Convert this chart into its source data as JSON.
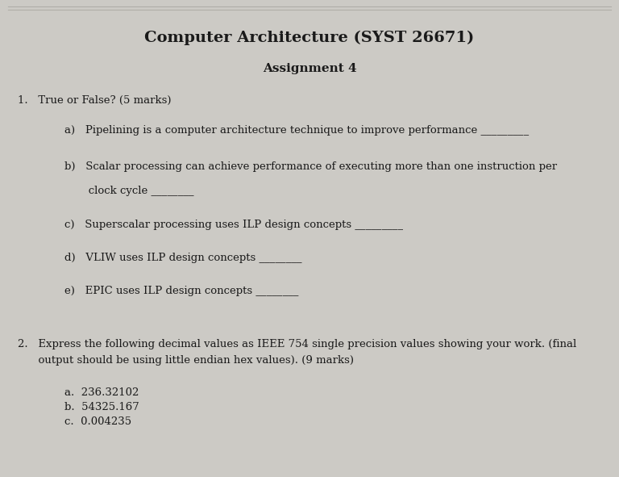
{
  "background_color": "#cccac5",
  "title": "Computer Architecture (SYST 26671)",
  "subtitle": "Assignment 4",
  "title_fontsize": 14,
  "subtitle_fontsize": 11,
  "body_fontsize": 9.5,
  "small_fontsize": 9.5,
  "q1_label": "1.   True or False? (5 marks)",
  "q1_items": [
    [
      "a)   Pipelining is a computer architecture technique to improve performance _________",
      0
    ],
    [
      "b)   Scalar processing can achieve performance of executing more than one instruction per",
      1
    ],
    [
      "       clock cycle ________",
      2
    ],
    [
      "c)   Superscalar processing uses ILP design concepts _________",
      3
    ],
    [
      "d)   VLIW uses ILP design concepts ________",
      4
    ],
    [
      "e)   EPIC uses ILP design concepts ________",
      5
    ]
  ],
  "q2_label_line1": "2.   Express the following decimal values as IEEE 754 single precision values showing your work. (final",
  "q2_label_line2": "      output should be using little endian hex values). (9 marks)",
  "q2_items": [
    "a.  236.32102",
    "b.  54325.167",
    "c.  0.004235"
  ],
  "text_color": "#1a1a1a",
  "font_family": "DejaVu Serif"
}
